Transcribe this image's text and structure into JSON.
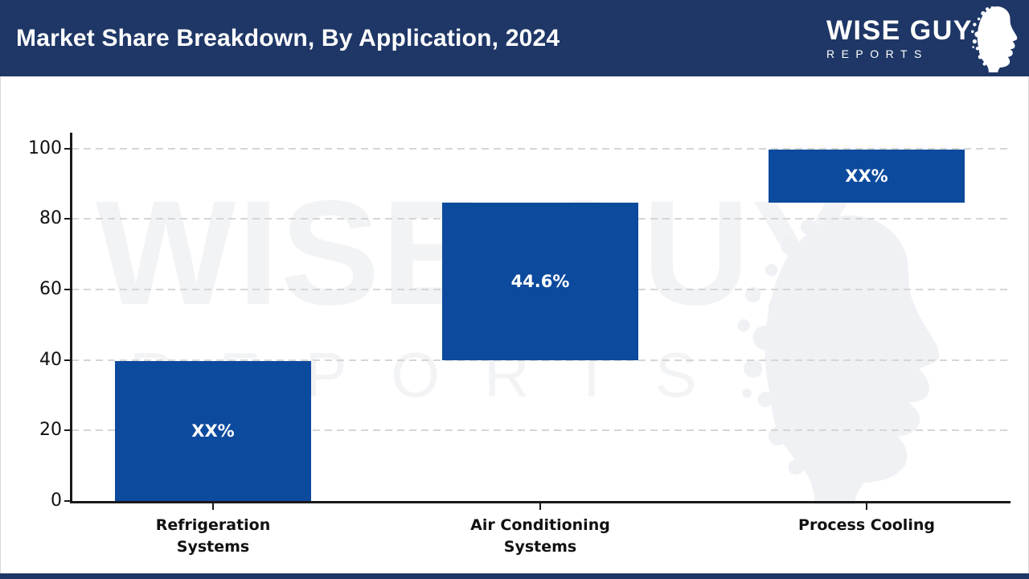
{
  "header": {
    "title": "Market Share Breakdown, By Application, 2024",
    "logo": {
      "wordmark": "WISE GUY",
      "subtext": "REPORTS"
    }
  },
  "watermark": {
    "line1": "WISE GUY",
    "line2": "REPORTS"
  },
  "colors": {
    "header_bg": "#1F3766",
    "footer_bg": "#1F3766",
    "bar": "#0C4A9D",
    "grid": "#D6D6D6",
    "axis": "#1A1A1A",
    "bar_label": "#FFFFFF",
    "watermark_text": "#F2F3F5",
    "watermark_head": "#EFF1F4"
  },
  "chart_data": {
    "type": "bar",
    "subtype": "waterfall",
    "title": "Market Share Breakdown, By Application, 2024",
    "categories": [
      [
        "Refrigeration",
        "Systems"
      ],
      [
        "Air Conditioning",
        "Systems"
      ],
      [
        "Process Cooling"
      ]
    ],
    "bars": [
      {
        "label": "XX%",
        "start": 0,
        "end": 39.7
      },
      {
        "label": "44.6%",
        "start": 40,
        "end": 84.6
      },
      {
        "label": "XX%",
        "start": 84.6,
        "end": 99.6
      }
    ],
    "yticks": [
      0,
      20,
      40,
      60,
      80,
      100
    ],
    "ylim": [
      0,
      104.5
    ],
    "grid": "horizontal-dashed",
    "legend": "none"
  }
}
